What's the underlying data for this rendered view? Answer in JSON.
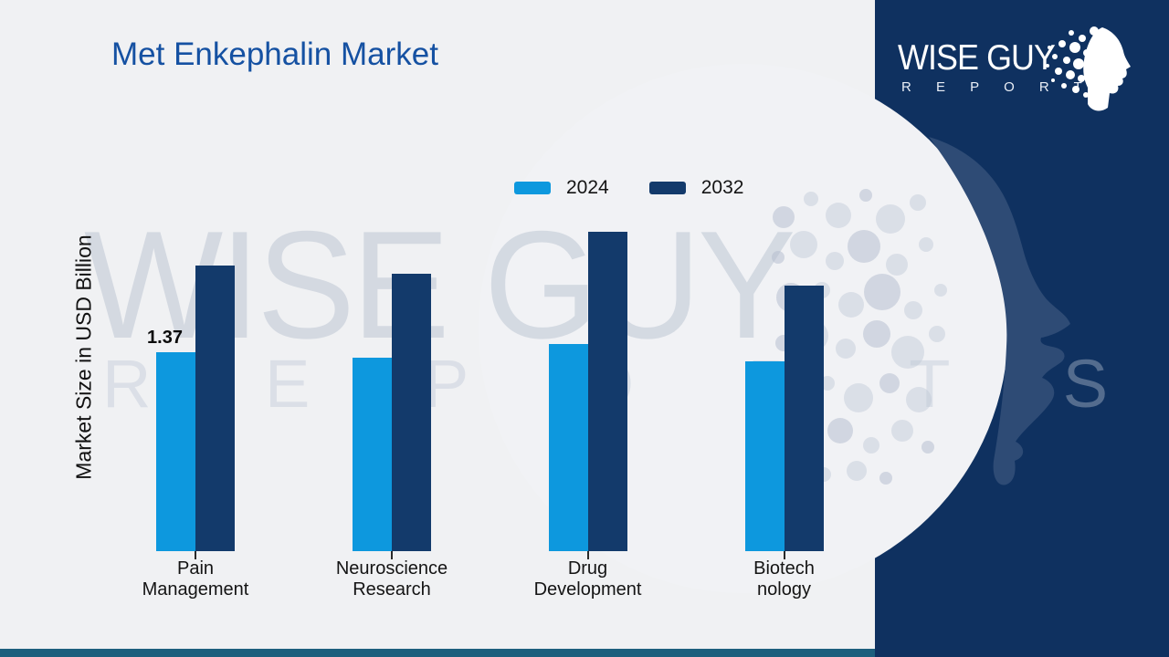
{
  "page": {
    "background": "#f0f1f3",
    "bottom_strip_color": "#1d5f7d",
    "side_band_color": "#0f3160"
  },
  "title": {
    "text": "Met Enkephalin Market",
    "color": "#1551a2"
  },
  "brand_logo": {
    "line1": "WISE GUY",
    "line2": "R E P O R T S",
    "face_icon": "face-profile-dots"
  },
  "watermark": {
    "line1": "WISE GUY",
    "line2": "R E P O R T S"
  },
  "chart_data": {
    "type": "bar",
    "title": "Met Enkephalin Market",
    "xlabel": "",
    "ylabel": "Market Size in USD Billion",
    "categories": [
      "Pain Management",
      "Neuroscience Research",
      "Drug Development",
      "Biotechnology"
    ],
    "category_label_lines": [
      [
        "Pain",
        "Management"
      ],
      [
        "Neuroscience",
        "Research"
      ],
      [
        "Drug",
        "Development"
      ],
      [
        "Biotech",
        "nology"
      ]
    ],
    "series": [
      {
        "name": "2024",
        "color": "#0d98de",
        "values": [
          1.37,
          1.33,
          1.43,
          1.31
        ]
      },
      {
        "name": "2032",
        "color": "#133a6b",
        "values": [
          1.97,
          1.91,
          2.2,
          1.83
        ]
      }
    ],
    "annotations": [
      {
        "series": "2024",
        "category_index": 0,
        "text": "1.37"
      }
    ],
    "ylim": [
      0,
      2.2
    ],
    "grid": false,
    "axis_lines": false,
    "legend_position": "top-center"
  }
}
